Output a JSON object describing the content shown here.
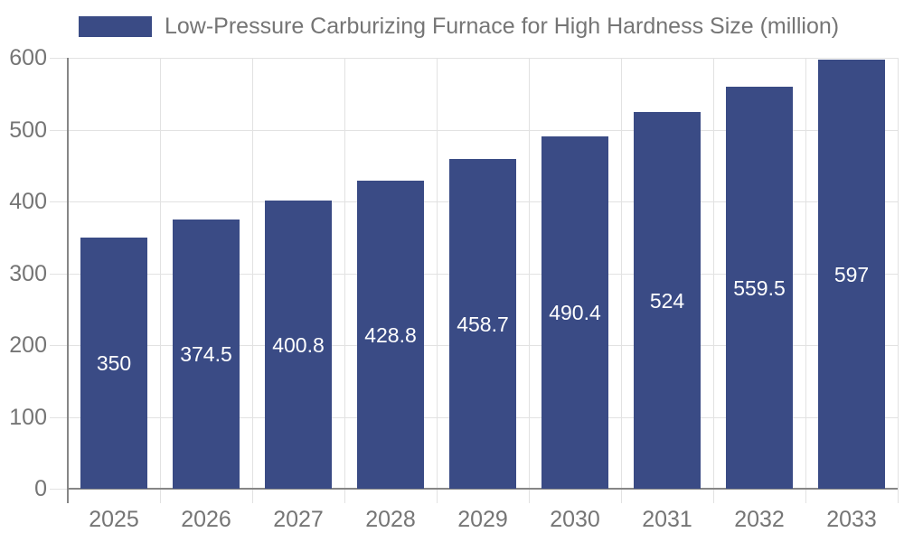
{
  "chart_data": {
    "type": "bar",
    "title": "Low-Pressure Carburizing Furnace for High Hardness Size (million)",
    "categories": [
      "2025",
      "2026",
      "2027",
      "2028",
      "2029",
      "2030",
      "2031",
      "2032",
      "2033"
    ],
    "values": [
      350,
      374.5,
      400.8,
      428.8,
      458.7,
      490.4,
      524,
      559.5,
      597
    ],
    "data_labels": [
      "350",
      "374.5",
      "400.8",
      "428.8",
      "458.7",
      "490.4",
      "524",
      "559.5",
      "597"
    ],
    "xlabel": "",
    "ylabel": "",
    "ylim": [
      0,
      600
    ],
    "ytick_step": 100,
    "ytick_labels": [
      "0",
      "100",
      "200",
      "300",
      "400",
      "500",
      "600"
    ],
    "grid": true,
    "legend_position": "top-left",
    "colors": {
      "bar_fill": "#3a4b85",
      "bar_label_text": "#ffffff",
      "axis_text": "#757575",
      "legend_text": "#757575",
      "gridline": "#e2e2e2",
      "axis_line": "#868686",
      "background": "#ffffff"
    }
  }
}
